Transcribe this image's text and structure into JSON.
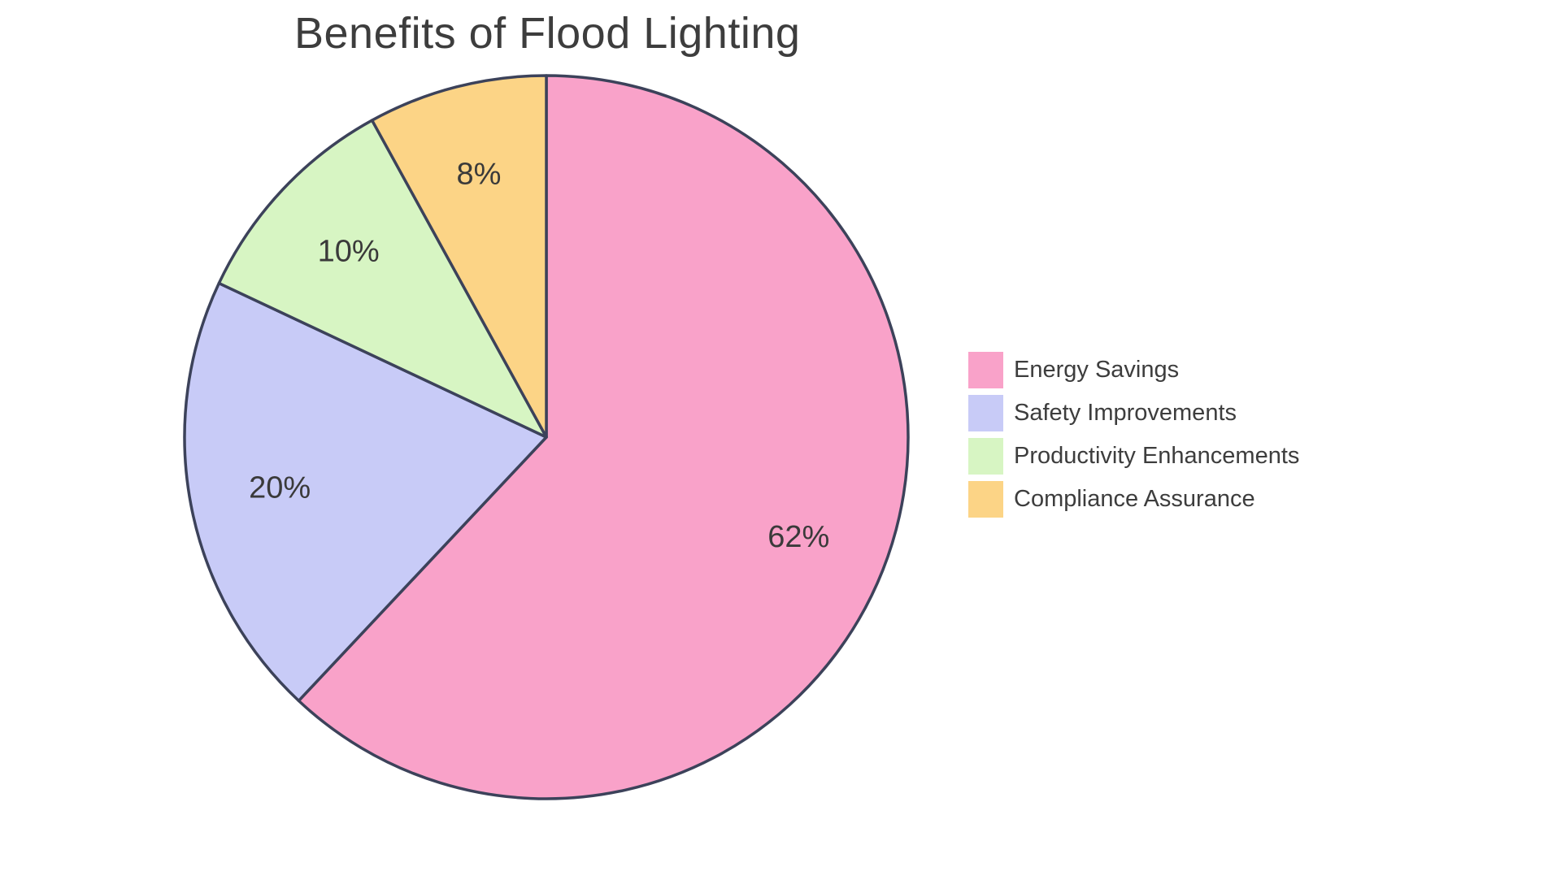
{
  "page": {
    "background_color": "#ffffff",
    "text_color": "#3d3d3d"
  },
  "chart_data": {
    "type": "pie",
    "title": "Benefits of Flood Lighting",
    "categories": [
      "Energy Savings",
      "Safety Improvements",
      "Productivity Enhancements",
      "Compliance Assurance"
    ],
    "values": [
      62,
      20,
      10,
      8
    ],
    "slice_labels": [
      "62%",
      "20%",
      "10%",
      "8%"
    ],
    "colors": [
      "#F9A2C9",
      "#C8CBF7",
      "#D7F5C3",
      "#FCD486"
    ],
    "stroke_color": "#3C425A",
    "label_color": "#3a3a3a",
    "start_angle_deg": 0,
    "direction": "clockwise",
    "legend_position": "right",
    "grid": "off"
  },
  "legend": {
    "items": [
      {
        "label": "Energy Savings",
        "color": "#F9A2C9"
      },
      {
        "label": "Safety Improvements",
        "color": "#C8CBF7"
      },
      {
        "label": "Productivity Enhancements",
        "color": "#D7F5C3"
      },
      {
        "label": "Compliance Assurance",
        "color": "#FCD486"
      }
    ]
  }
}
